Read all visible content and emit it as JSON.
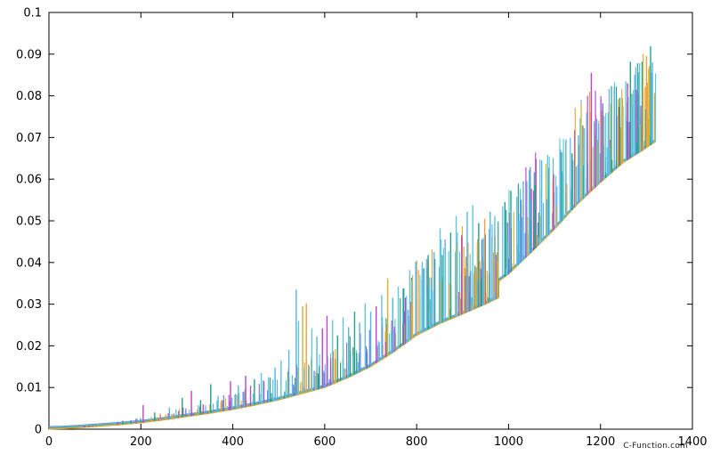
{
  "chart_data": {
    "type": "line",
    "title": "",
    "xlabel": "",
    "ylabel": "",
    "xlim": [
      0,
      1400
    ],
    "ylim": [
      0,
      0.1
    ],
    "grid": false,
    "legend": false,
    "axis_color": "#000000",
    "watermark": "C-Function.com",
    "x_ticks": [
      [
        0,
        "0"
      ],
      [
        200,
        "200"
      ],
      [
        400,
        "400"
      ],
      [
        600,
        "600"
      ],
      [
        800,
        "800"
      ],
      [
        1000,
        "1000"
      ],
      [
        1200,
        "1200"
      ],
      [
        1400,
        "1400"
      ]
    ],
    "y_ticks": [
      [
        0,
        "0"
      ],
      [
        0.01,
        "0.01"
      ],
      [
        0.02,
        "0.02"
      ],
      [
        0.03,
        "0.03"
      ],
      [
        0.04,
        "0.04"
      ],
      [
        0.05,
        "0.05"
      ],
      [
        0.06,
        "0.06"
      ],
      [
        0.07,
        "0.07"
      ],
      [
        0.08,
        "0.08"
      ],
      [
        0.09,
        "0.09"
      ],
      [
        0.1,
        "0.1"
      ]
    ],
    "series_colors": [
      "#56B4E9",
      "#E8A33C",
      "#23A189",
      "#BB44CC",
      "#63C5D8",
      "#6A78D1",
      "#D9B02F"
    ],
    "env_offsets": [
      0.00036,
      0.00012,
      0.00024,
      0.00055,
      0.00048,
      0.0006,
      0.0
    ],
    "env_draw_order": [
      3,
      5,
      4,
      0,
      2,
      6,
      1
    ],
    "envelope": [
      [
        0,
        0
      ],
      [
        30,
        0.0001
      ],
      [
        60,
        0.0003
      ],
      [
        100,
        0.0006
      ],
      [
        150,
        0.001
      ],
      [
        200,
        0.0015
      ],
      [
        250,
        0.0022
      ],
      [
        300,
        0.003
      ],
      [
        350,
        0.0038
      ],
      [
        400,
        0.0047
      ],
      [
        450,
        0.0058
      ],
      [
        500,
        0.007
      ],
      [
        550,
        0.0085
      ],
      [
        600,
        0.01
      ],
      [
        650,
        0.0123
      ],
      [
        700,
        0.015
      ],
      [
        750,
        0.0185
      ],
      [
        800,
        0.0225
      ],
      [
        850,
        0.0253
      ],
      [
        900,
        0.0276
      ],
      [
        950,
        0.03
      ],
      [
        978,
        0.0315
      ],
      [
        979,
        0.0355
      ],
      [
        1000,
        0.0372
      ],
      [
        1050,
        0.0425
      ],
      [
        1100,
        0.048
      ],
      [
        1150,
        0.054
      ],
      [
        1200,
        0.0592
      ],
      [
        1250,
        0.064
      ],
      [
        1290,
        0.0668
      ],
      [
        1320,
        0.069
      ]
    ],
    "step_x": 978,
    "major_spikes": [
      [
        205,
        0.0058,
        3
      ],
      [
        230,
        0.004,
        2
      ],
      [
        262,
        0.0052,
        0
      ],
      [
        290,
        0.0075,
        2
      ],
      [
        310,
        0.0092,
        3
      ],
      [
        330,
        0.007,
        2
      ],
      [
        352,
        0.0108,
        2
      ],
      [
        368,
        0.008,
        0
      ],
      [
        395,
        0.0115,
        3
      ],
      [
        412,
        0.0105,
        0
      ],
      [
        428,
        0.0128,
        3
      ],
      [
        447,
        0.012,
        2
      ],
      [
        462,
        0.0135,
        4
      ],
      [
        478,
        0.0125,
        0
      ],
      [
        492,
        0.0148,
        0
      ],
      [
        505,
        0.0165,
        4
      ],
      [
        522,
        0.019,
        0
      ],
      [
        538,
        0.0335,
        0
      ],
      [
        543,
        0.026,
        4
      ],
      [
        552,
        0.0295,
        6
      ],
      [
        560,
        0.0302,
        1
      ],
      [
        572,
        0.0242,
        4
      ],
      [
        583,
        0.0222,
        0
      ],
      [
        595,
        0.0242,
        3
      ],
      [
        605,
        0.0272,
        3
      ],
      [
        617,
        0.0262,
        4
      ],
      [
        628,
        0.0225,
        2
      ],
      [
        640,
        0.0268,
        4
      ],
      [
        652,
        0.0245,
        0
      ],
      [
        665,
        0.0282,
        2
      ],
      [
        676,
        0.0256,
        0
      ],
      [
        688,
        0.0302,
        4
      ],
      [
        700,
        0.0282,
        0
      ],
      [
        712,
        0.0295,
        3
      ],
      [
        724,
        0.0322,
        4
      ],
      [
        737,
        0.0362,
        6
      ],
      [
        748,
        0.0315,
        0
      ],
      [
        760,
        0.0342,
        4
      ],
      [
        772,
        0.0338,
        2
      ],
      [
        785,
        0.0382,
        4
      ],
      [
        798,
        0.0402,
        0
      ],
      [
        812,
        0.0392,
        4
      ],
      [
        825,
        0.0418,
        2
      ],
      [
        838,
        0.0425,
        0
      ],
      [
        851,
        0.0482,
        4
      ],
      [
        862,
        0.0455,
        0
      ],
      [
        874,
        0.0472,
        2
      ],
      [
        886,
        0.0512,
        4
      ],
      [
        898,
        0.0465,
        3
      ],
      [
        910,
        0.0522,
        0
      ],
      [
        922,
        0.0538,
        4
      ],
      [
        935,
        0.0495,
        2
      ],
      [
        948,
        0.0505,
        1
      ],
      [
        960,
        0.0522,
        0
      ],
      [
        970,
        0.0512,
        4
      ],
      [
        992,
        0.0545,
        2
      ],
      [
        1005,
        0.0572,
        2
      ],
      [
        1018,
        0.0558,
        4
      ],
      [
        1032,
        0.0595,
        0
      ],
      [
        1045,
        0.0622,
        4
      ],
      [
        1058,
        0.0585,
        2
      ],
      [
        1072,
        0.0645,
        0
      ],
      [
        1085,
        0.0658,
        4
      ],
      [
        1098,
        0.0612,
        3
      ],
      [
        1112,
        0.0672,
        0
      ],
      [
        1125,
        0.0695,
        4
      ],
      [
        1138,
        0.0662,
        2
      ],
      [
        1152,
        0.0705,
        0
      ],
      [
        1165,
        0.0722,
        4
      ],
      [
        1180,
        0.0855,
        3
      ],
      [
        1192,
        0.0745,
        0
      ],
      [
        1205,
        0.0782,
        5
      ],
      [
        1218,
        0.0758,
        4
      ],
      [
        1230,
        0.0822,
        0
      ],
      [
        1242,
        0.0795,
        2
      ],
      [
        1255,
        0.0835,
        4
      ],
      [
        1259,
        0.083,
        3
      ],
      [
        1265,
        0.0882,
        2
      ],
      [
        1275,
        0.0848,
        0
      ],
      [
        1285,
        0.0878,
        4
      ],
      [
        1300,
        0.0895,
        1
      ],
      [
        1305,
        0.0865,
        6
      ],
      [
        1309,
        0.0919,
        2
      ],
      [
        1313,
        0.088,
        0
      ]
    ],
    "noise_bands": [
      {
        "x0": 60,
        "x1": 200,
        "n": 25,
        "m0": 1.15,
        "m1": 1.9,
        "colors": [
          0,
          1,
          2,
          3,
          4,
          6
        ]
      },
      {
        "x0": 200,
        "x1": 300,
        "n": 26,
        "m0": 1.1,
        "m1": 1.85,
        "colors": [
          0,
          1,
          2,
          3,
          4,
          5,
          6
        ]
      },
      {
        "x0": 300,
        "x1": 400,
        "n": 28,
        "m0": 1.1,
        "m1": 1.9,
        "colors": [
          0,
          1,
          2,
          3,
          4,
          5,
          6
        ]
      },
      {
        "x0": 400,
        "x1": 500,
        "n": 30,
        "m0": 1.1,
        "m1": 1.9,
        "colors": [
          0,
          0,
          1,
          2,
          3,
          4,
          5,
          6
        ]
      },
      {
        "x0": 500,
        "x1": 600,
        "n": 34,
        "m0": 1.1,
        "m1": 2.0,
        "colors": [
          0,
          0,
          1,
          2,
          3,
          4,
          5,
          6
        ]
      },
      {
        "x0": 600,
        "x1": 700,
        "n": 38,
        "m0": 1.1,
        "m1": 1.8,
        "colors": [
          0,
          0,
          1,
          2,
          3,
          4,
          4,
          5,
          6
        ]
      },
      {
        "x0": 700,
        "x1": 800,
        "n": 40,
        "m0": 1.08,
        "m1": 1.7,
        "colors": [
          0,
          0,
          1,
          2,
          3,
          4,
          4,
          6
        ]
      },
      {
        "x0": 800,
        "x1": 900,
        "n": 48,
        "m0": 1.08,
        "m1": 1.8,
        "colors": [
          0,
          0,
          1,
          2,
          4,
          4,
          3,
          6
        ]
      },
      {
        "x0": 900,
        "x1": 978,
        "n": 72,
        "m0": 1.03,
        "m1": 1.6,
        "colors": [
          1,
          1,
          6,
          0,
          2,
          4,
          3,
          5,
          6,
          1
        ]
      },
      {
        "x0": 985,
        "x1": 1100,
        "n": 55,
        "m0": 1.04,
        "m1": 1.55,
        "colors": [
          0,
          0,
          1,
          2,
          3,
          4,
          4,
          5,
          6
        ]
      },
      {
        "x0": 1100,
        "x1": 1200,
        "n": 56,
        "m0": 1.04,
        "m1": 1.45,
        "colors": [
          0,
          0,
          1,
          2,
          3,
          4,
          4,
          6
        ]
      },
      {
        "x0": 1200,
        "x1": 1320,
        "n": 85,
        "m0": 1.02,
        "m1": 1.35,
        "colors": [
          0,
          1,
          2,
          3,
          4,
          4,
          6,
          0,
          1
        ]
      }
    ],
    "seed": 42
  }
}
